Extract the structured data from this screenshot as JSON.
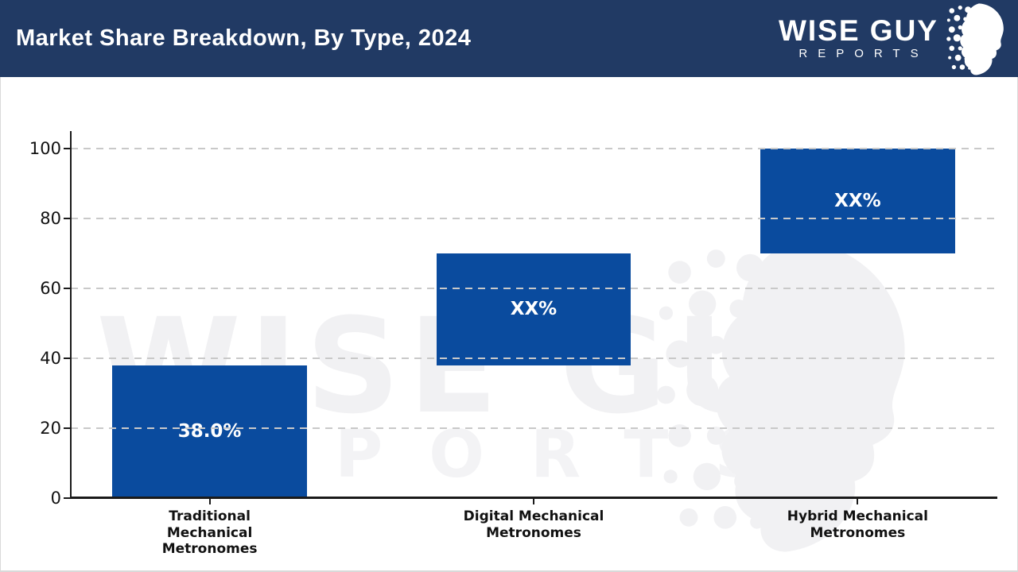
{
  "header": {
    "title": "Market Share Breakdown, By Type, 2024",
    "logo": {
      "name": "Wise Guy Reports",
      "line1": "WISE GUY",
      "line2": "REPORTS"
    }
  },
  "watermark": {
    "line1": "WISE GUY",
    "line2": "REPORTS"
  },
  "chart_data": {
    "type": "bar",
    "variant": "waterfall-floating-bars",
    "title": "Market Share Breakdown, By Type, 2024",
    "categories": [
      "Traditional Mechanical Metronomes",
      "Digital Mechanical Metronomes",
      "Hybrid Mechanical Metronomes"
    ],
    "category_lines": [
      [
        "Traditional",
        "Mechanical",
        "Metronomes"
      ],
      [
        "Digital Mechanical",
        "Metronomes"
      ],
      [
        "Hybrid Mechanical",
        "Metronomes"
      ]
    ],
    "segments": [
      {
        "category": "Traditional Mechanical Metronomes",
        "start": 0,
        "end": 38,
        "label": "38.0%"
      },
      {
        "category": "Digital Mechanical Metronomes",
        "start": 38,
        "end": 70,
        "label": "XX%"
      },
      {
        "category": "Hybrid Mechanical Metronomes",
        "start": 70,
        "end": 100,
        "label": "XX%"
      }
    ],
    "xlabel": "",
    "ylabel": "",
    "ylim": [
      0,
      100
    ],
    "yticks": [
      0,
      20,
      40,
      60,
      80,
      100
    ],
    "grid": "horizontal-dashed",
    "legend": "none",
    "bar_color": "#0a4b9e"
  },
  "colors": {
    "header_bg": "#213a64",
    "bar": "#0a4b9e",
    "bar_label": "#ffffff",
    "axis": "#1a1a1a",
    "gridline": "#c9c9c9",
    "watermark": "#f1f1f3",
    "chart_border": "#d9d9d9",
    "background": "#ffffff"
  }
}
